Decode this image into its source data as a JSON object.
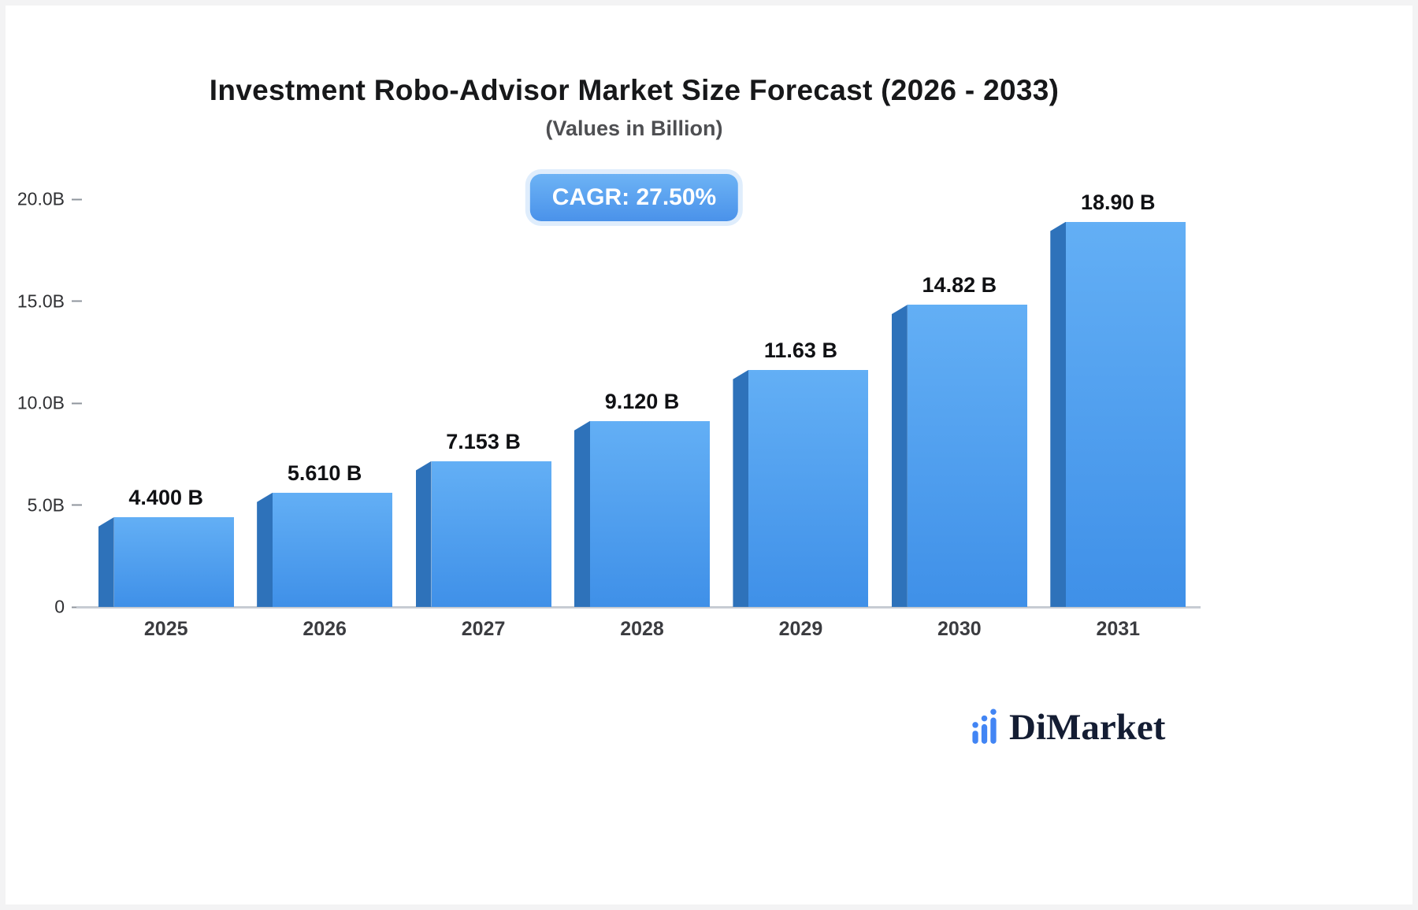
{
  "title": "Investment Robo-Advisor Market Size Forecast (2026 - 2033)",
  "subtitle": "(Values in Billion)",
  "badge": {
    "label": "CAGR: 27.50%"
  },
  "logo": {
    "text": "DiMarket",
    "icon": "bar-chart-icon"
  },
  "colors": {
    "bar_front_top": "#63aff5",
    "bar_front_bottom": "#3f90e8",
    "bar_side": "#2e72ba",
    "badge_top": "#6db3f5",
    "badge_bottom": "#4a92ea",
    "axis_line": "#c7ccd3",
    "logo_icon_blue": "#4285f4",
    "logo_text": "#141d33"
  },
  "chart_data": {
    "type": "bar",
    "title": "Investment Robo-Advisor Market Size Forecast (2026 - 2033)",
    "subtitle": "(Values in Billion)",
    "categories": [
      "2025",
      "2026",
      "2027",
      "2028",
      "2029",
      "2030",
      "2031"
    ],
    "values": [
      4.4,
      5.61,
      7.153,
      9.12,
      11.63,
      14.82,
      18.9
    ],
    "value_labels": [
      "4.400 B",
      "5.610 B",
      "7.153 B",
      "9.120 B",
      "11.63 B",
      "14.82 B",
      "18.90 B"
    ],
    "xlabel": "",
    "ylabel": "",
    "ylim": [
      0,
      20
    ],
    "yticks": {
      "values": [
        0,
        5,
        10,
        15,
        20
      ],
      "labels": [
        "0",
        "5.0B",
        "10.0B",
        "15.0B",
        "20.0B"
      ]
    },
    "grid": false,
    "legend": "none",
    "annotations": [
      "CAGR: 27.50%"
    ]
  }
}
